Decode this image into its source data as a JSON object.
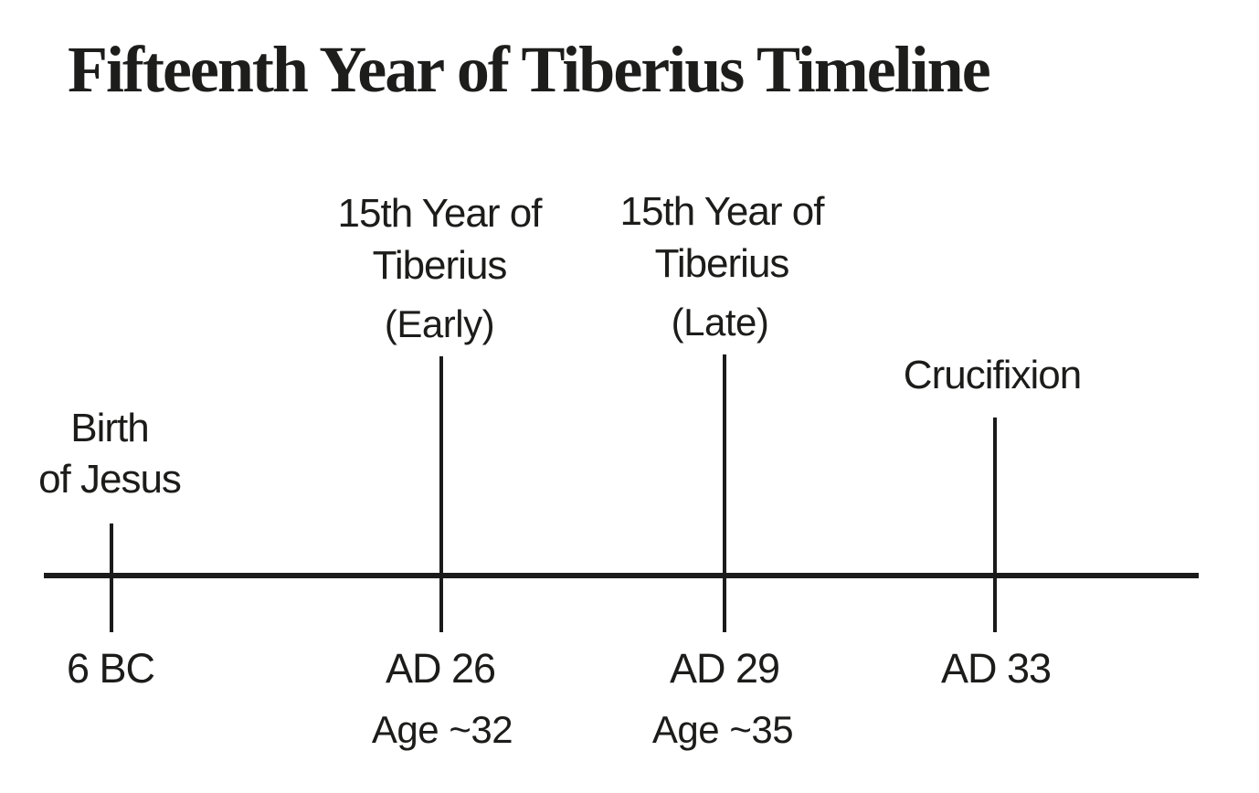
{
  "title": "Fifteenth Year of Tiberius Timeline",
  "colors": {
    "ink": "#1b1b1b",
    "background": "#ffffff"
  },
  "timeline": {
    "markers": [
      {
        "event_line1": "Birth",
        "event_line2": "of Jesus",
        "date": "6 BC"
      },
      {
        "event_line1": "15th Year of",
        "event_line2": "Tiberius",
        "qualifier": "(Early)",
        "date": "AD 26",
        "age": "Age ~32"
      },
      {
        "event_line1": "15th Year of",
        "event_line2": "Tiberius",
        "qualifier": "(Late)",
        "date": "AD 29",
        "age": "Age ~35"
      },
      {
        "event_line1": "Crucifixion",
        "date": "AD 33"
      }
    ]
  }
}
